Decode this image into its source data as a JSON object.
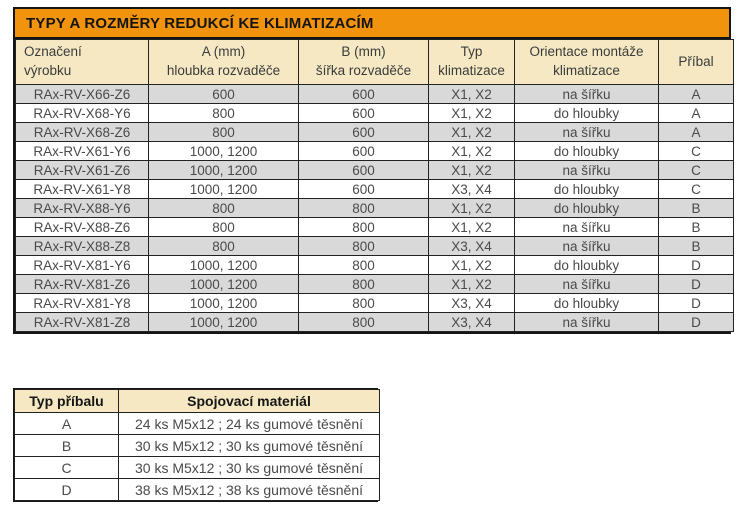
{
  "colors": {
    "title_bg": "#F2930D",
    "header_bg": "#F5E8C3",
    "row_alt_bg": "#D9D9D9",
    "row_bg": "#FFFFFF",
    "border": "#151515",
    "data_text": "#4A4A4A"
  },
  "main_table": {
    "title": "TYPY A ROZMĚRY REDUKCÍ KE KLIMATIZACÍM",
    "columns": [
      "Označení\nvýrobku",
      "A (mm)\nhloubka rozvaděče",
      "B (mm)\nšířka rozvaděče",
      "Typ\nklimatizace",
      "Orientace montáže\nklimatizace",
      "Příbal"
    ],
    "rows": [
      [
        "RAx-RV-X66-Z6",
        "600",
        "600",
        "X1, X2",
        "na šířku",
        "A"
      ],
      [
        "RAx-RV-X68-Y6",
        "800",
        "600",
        "X1, X2",
        "do hloubky",
        "A"
      ],
      [
        "RAx-RV-X68-Z6",
        "800",
        "600",
        "X1, X2",
        "na šířku",
        "A"
      ],
      [
        "RAx-RV-X61-Y6",
        "1000, 1200",
        "600",
        "X1, X2",
        "do hloubky",
        "C"
      ],
      [
        "RAx-RV-X61-Z6",
        "1000, 1200",
        "600",
        "X1, X2",
        "na šířku",
        "C"
      ],
      [
        "RAx-RV-X61-Y8",
        "1000, 1200",
        "600",
        "X3, X4",
        "do hloubky",
        "C"
      ],
      [
        "RAx-RV-X88-Y6",
        "800",
        "800",
        "X1, X2",
        "do hloubky",
        "B"
      ],
      [
        "RAx-RV-X88-Z6",
        "800",
        "800",
        "X1, X2",
        "na šířku",
        "B"
      ],
      [
        "RAx-RV-X88-Z8",
        "800",
        "800",
        "X3, X4",
        "na šířku",
        "B"
      ],
      [
        "RAx-RV-X81-Y6",
        "1000, 1200",
        "800",
        "X1, X2",
        "do hloubky",
        "D"
      ],
      [
        "RAx-RV-X81-Z6",
        "1000, 1200",
        "800",
        "X1, X2",
        "na šířku",
        "D"
      ],
      [
        "RAx-RV-X81-Y8",
        "1000, 1200",
        "800",
        "X3, X4",
        "do hloubky",
        "D"
      ],
      [
        "RAx-RV-X81-Z8",
        "1000, 1200",
        "800",
        "X3, X4",
        "na šířku",
        "D"
      ]
    ]
  },
  "accessory_table": {
    "columns": [
      "Typ příbalu",
      "Spojovací materiál"
    ],
    "rows": [
      [
        "A",
        "24 ks M5x12 ; 24 ks gumové těsnění"
      ],
      [
        "B",
        "30 ks M5x12 ; 30 ks gumové těsnění"
      ],
      [
        "C",
        "30 ks M5x12 ; 30 ks gumové těsnění"
      ],
      [
        "D",
        "38 ks M5x12 ; 38 ks gumové těsnění"
      ]
    ]
  }
}
